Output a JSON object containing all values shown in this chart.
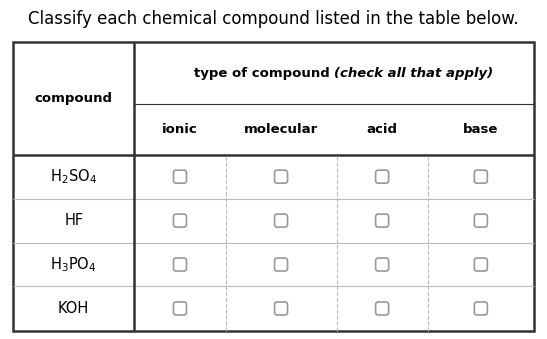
{
  "title": "Classify each chemical compound listed in the table below.",
  "title_fontsize": 12,
  "col_headers": [
    "ionic",
    "molecular",
    "acid",
    "base"
  ],
  "compound_labels": [
    "H₂SO₄",
    "HF",
    "H₃PO₄",
    "KOH"
  ],
  "compound_math": [
    "$H_2SO_4$",
    "HF",
    "$H_3PO_4$",
    "KOH"
  ],
  "bg_color": "#ffffff",
  "border_color": "#333333",
  "light_border_color": "#bbbbbb",
  "checkbox_color": "#999999",
  "text_color": "#000000",
  "fig_width": 5.47,
  "fig_height": 3.39,
  "dpi": 100
}
